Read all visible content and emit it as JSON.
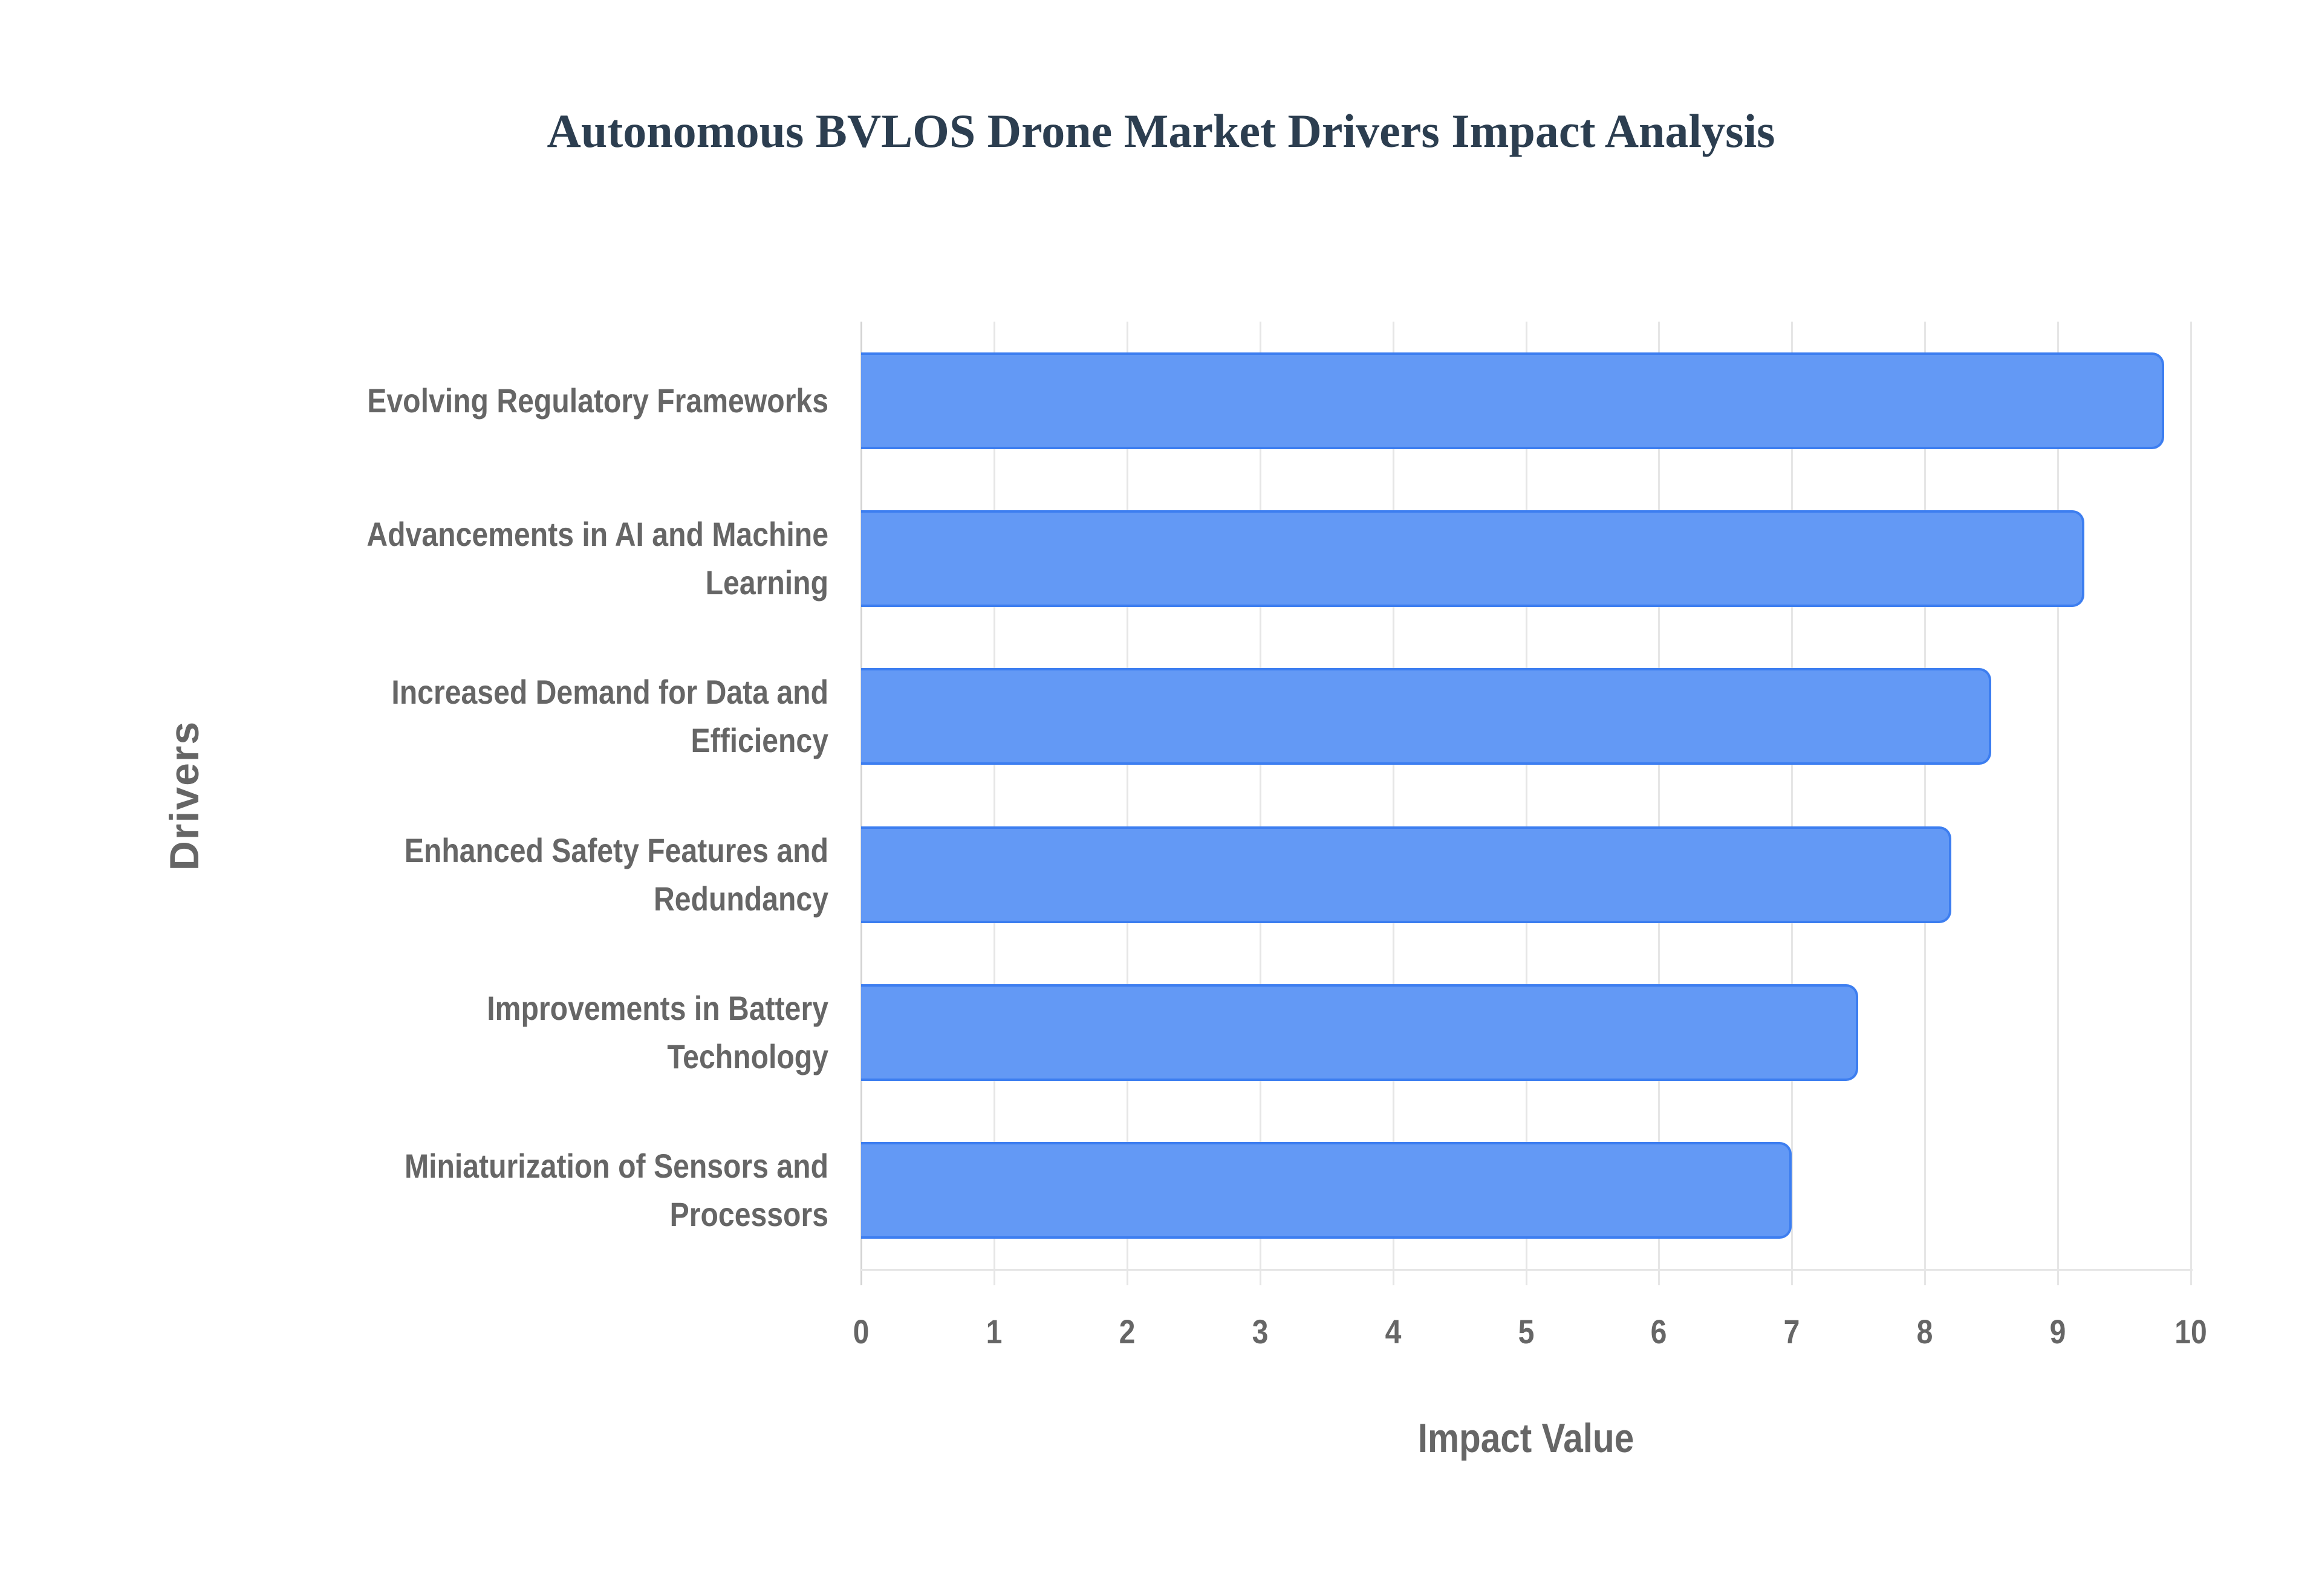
{
  "chart_data": {
    "type": "bar",
    "orientation": "horizontal",
    "title": "Autonomous BVLOS Drone Market Drivers Impact Analysis",
    "xlabel": "Impact Value",
    "ylabel": "Drivers",
    "xlim": [
      0,
      10
    ],
    "xticks": [
      "0",
      "1",
      "2",
      "3",
      "4",
      "5",
      "6",
      "7",
      "8",
      "9",
      "10"
    ],
    "grid": true,
    "legend": null,
    "categories": [
      "Evolving Regulatory Frameworks",
      "Advancements in AI and Machine Learning",
      "Increased Demand for Data and Efficiency",
      "Enhanced Safety Features and Redundancy",
      "Improvements in Battery Technology",
      "Miniaturization of Sensors and Processors"
    ],
    "values": [
      9.8,
      9.2,
      8.5,
      8.2,
      7.5,
      7.0
    ],
    "bar_color": "#6399f5",
    "bar_border_color": "#3d7ef0"
  },
  "labels": [
    [
      "Evolving Regulatory Frameworks"
    ],
    [
      "Advancements in AI and Machine",
      "Learning"
    ],
    [
      "Increased Demand for Data and",
      "Efficiency"
    ],
    [
      "Enhanced Safety Features and",
      "Redundancy"
    ],
    [
      "Improvements in Battery",
      "Technology"
    ],
    [
      "Miniaturization of Sensors and",
      "Processors"
    ]
  ]
}
